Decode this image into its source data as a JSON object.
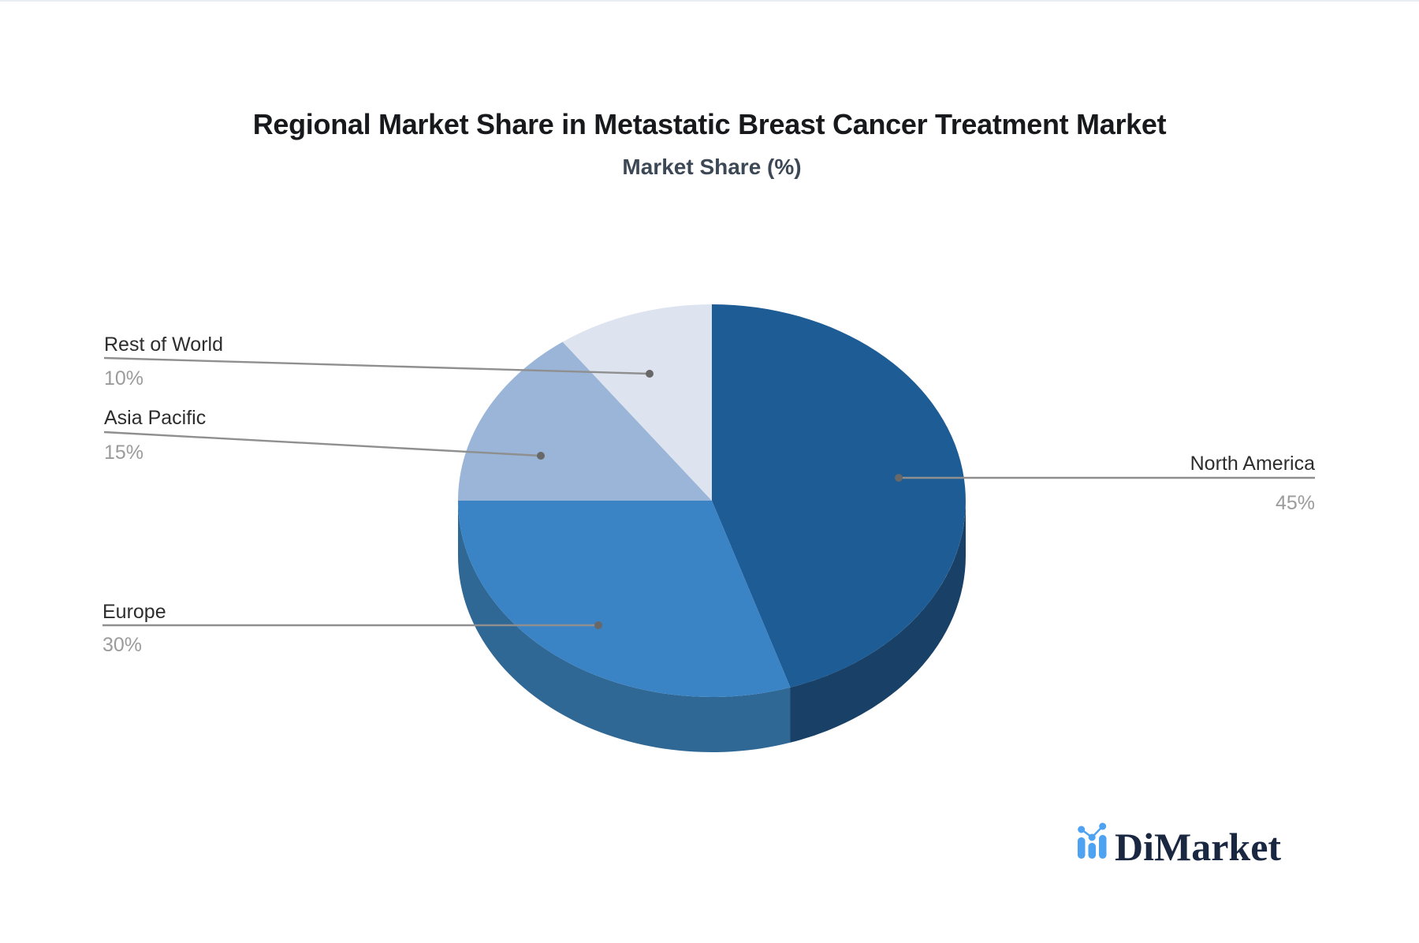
{
  "header": {
    "title": "Regional Market Share in Metastatic Breast Cancer Treatment Market",
    "subtitle": "Market Share (%)"
  },
  "chart_data": {
    "type": "pie",
    "style": "3d",
    "unit": "%",
    "title": "Regional Market Share in Metastatic Breast Cancer Treatment Market",
    "subtitle": "Market Share (%)",
    "start_angle_deg": 0,
    "direction": "clockwise",
    "legend_position": "none",
    "slices": [
      {
        "label": "North America",
        "value": 45,
        "display": "45%",
        "color": "#1e5c96",
        "side_color": "#194167"
      },
      {
        "label": "Europe",
        "value": 30,
        "display": "30%",
        "color": "#3a84c6",
        "side_color": "#2f6795"
      },
      {
        "label": "Asia Pacific",
        "value": 15,
        "display": "15%",
        "color": "#9ab5d8",
        "side_color": "#7e9cc0"
      },
      {
        "label": "Rest of World",
        "value": 10,
        "display": "10%",
        "color": "#dde4ef",
        "side_color": "#b9c4d6"
      }
    ]
  },
  "logo": {
    "text": "DiMarket",
    "icon_color": "#4da2f2",
    "text_color": "#1a2740"
  }
}
